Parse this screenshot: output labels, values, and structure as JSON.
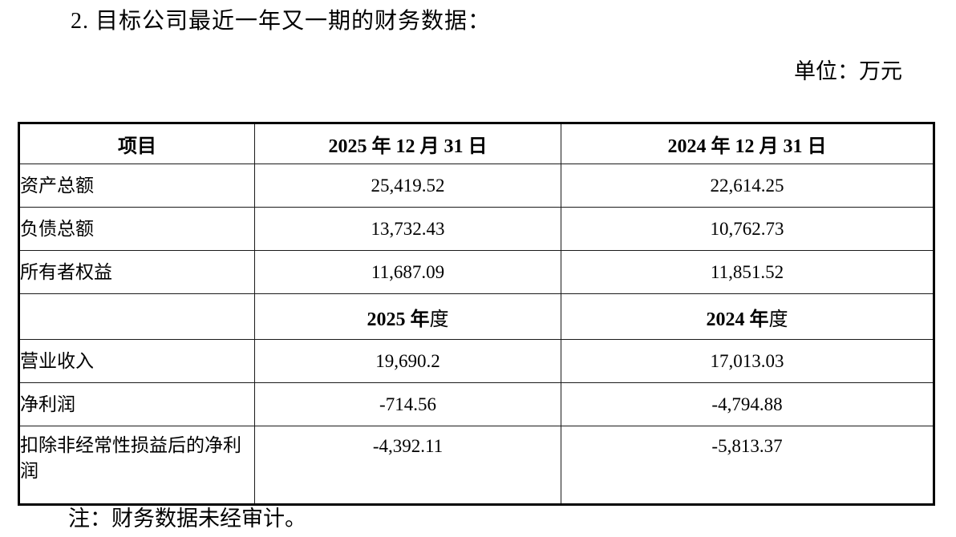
{
  "page": {
    "title": "2. 目标公司最近一年又一期的财务数据：",
    "unit_label": "单位：万元",
    "note": "注：财务数据未经审计。"
  },
  "table": {
    "header": {
      "item": "项目",
      "date_2025": "2025 年 12 月 31 日",
      "date_2024": "2024 年 12 月 31 日"
    },
    "balance_rows": [
      {
        "label": "资产总额",
        "y2025": "25,419.52",
        "y2024": "22,614.25"
      },
      {
        "label": "负债总额",
        "y2025": "13,732.43",
        "y2024": "10,762.73"
      },
      {
        "label": "所有者权益",
        "y2025": "11,687.09",
        "y2024": "11,851.52"
      }
    ],
    "period_header": {
      "p2025_bold": "2025 年",
      "p2025_regular": "度",
      "p2024_bold": "2024 年",
      "p2024_regular": "度"
    },
    "income_rows": [
      {
        "label": "营业收入",
        "y2025": "19,690.2",
        "y2024": "17,013.03"
      },
      {
        "label": "净利润",
        "y2025": "-714.56",
        "y2024": "-4,794.88"
      },
      {
        "label": "扣除非经常性损益后的净利润",
        "y2025": "-4,392.11",
        "y2024": "-5,813.37"
      }
    ]
  }
}
